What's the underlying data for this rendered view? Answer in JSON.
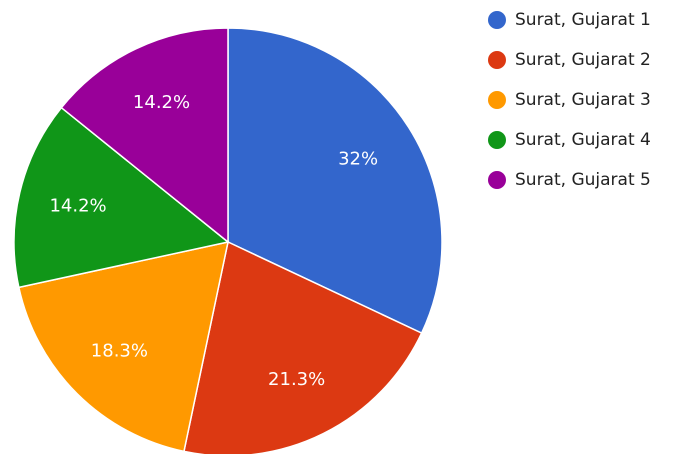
{
  "chart_data": {
    "type": "pie",
    "categories": [
      "Surat, Gujarat 1",
      "Surat, Gujarat 2",
      "Surat, Gujarat 3",
      "Surat, Gujarat 4",
      "Surat, Gujarat 5"
    ],
    "values": [
      32,
      21.3,
      18.3,
      14.2,
      14.2
    ],
    "value_labels": [
      "32%",
      "21.3%",
      "18.3%",
      "14.2%",
      "14.2%"
    ],
    "colors": [
      "#3366cc",
      "#dc3912",
      "#ff9900",
      "#109618",
      "#990099"
    ],
    "legend": "right"
  }
}
